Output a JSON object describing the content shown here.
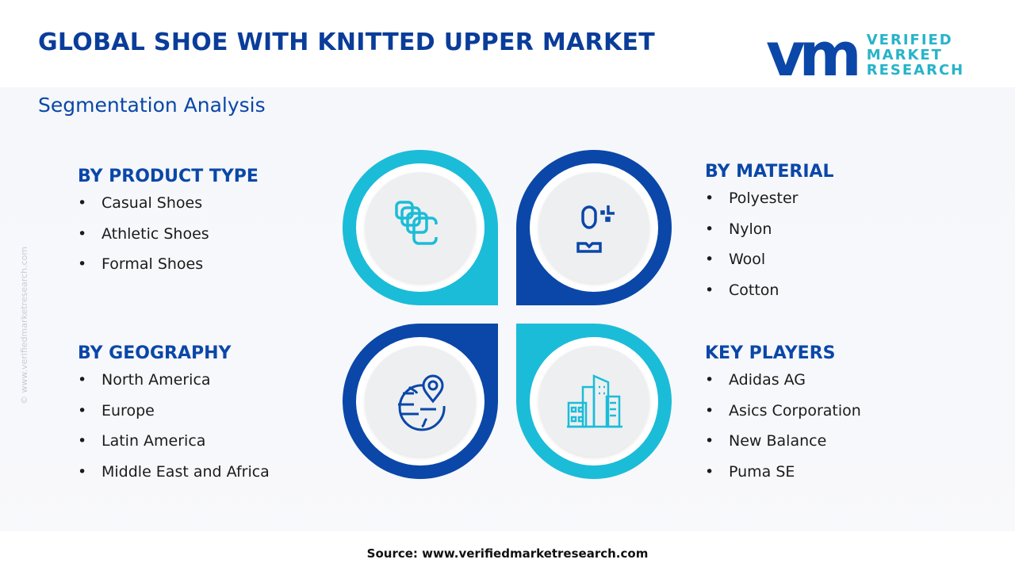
{
  "header": {
    "title": "GLOBAL SHOE WITH KNITTED UPPER MARKET",
    "subtitle": "Segmentation Analysis"
  },
  "logo": {
    "mark": "vmr",
    "line1": "VERIFIED",
    "line2": "MARKET",
    "line3": "RESEARCH"
  },
  "side_watermark": "© www.verifiedmarketresearch.com",
  "colors": {
    "dark_blue": "#0a47a8",
    "cyan": "#1bbcd8",
    "title": "#0a3d9a"
  },
  "sections": {
    "product_type": {
      "heading": "BY PRODUCT TYPE",
      "items": [
        "Casual Shoes",
        "Athletic Shoes",
        "Formal Shoes"
      ],
      "icon": "stacked-squares-icon"
    },
    "material": {
      "heading": "BY MATERIAL",
      "items": [
        "Polyester",
        "Nylon",
        "Wool",
        "Cotton"
      ],
      "icon": "person-sparkle-icon"
    },
    "geography": {
      "heading": "BY GEOGRAPHY",
      "items": [
        "North America",
        "Europe",
        "Latin America",
        "Middle East and Africa"
      ],
      "icon": "globe-pin-icon"
    },
    "key_players": {
      "heading": "KEY PLAYERS",
      "items": [
        "Adidas AG",
        "Asics Corporation",
        "New Balance",
        "Puma SE"
      ],
      "icon": "buildings-icon"
    }
  },
  "bullet": "•",
  "source": "Source: www.verifiedmarketresearch.com"
}
